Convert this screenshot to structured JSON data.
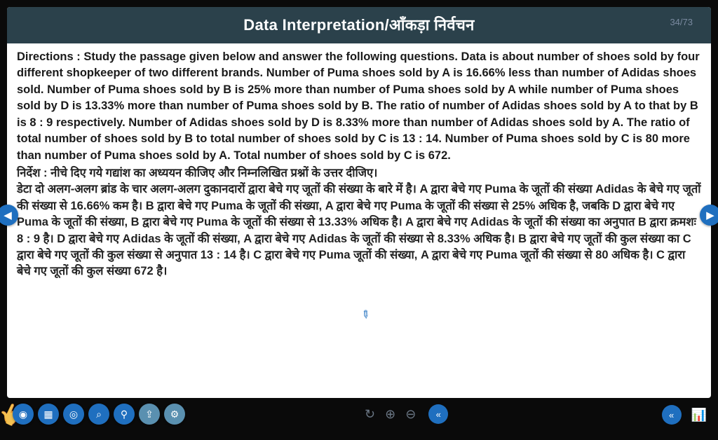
{
  "page_counter": "34/73",
  "title": "Data Interpretation/आँकड़ा निर्वचन",
  "directions_label": "Directions :",
  "english_text": "Study the passage given below and answer the following questions.\nData is about number of shoes sold by four different shopkeeper of two different brands. Number of Puma shoes sold by A is 16.66% less than number of Adidas shoes sold. Number of Puma shoes sold by B is 25% more than number of Puma shoes sold by A while number of Puma shoes sold by D is 13.33% more than number of Puma shoes sold by B. The ratio of number of Adidas shoes sold by A to that by B is 8 : 9 respectively. Number of Adidas shoes sold by D is 8.33% more than number of Adidas shoes sold by A. The ratio of total number of shoes sold by B to total number of shoes sold by C is 13 : 14. Number of Puma shoes sold by C is 80 more than number of Puma shoes sold by A. Total number of shoes sold by C is 672.",
  "hindi_directions_label": "निर्देश :",
  "hindi_directions": "नीचे दिए गये गद्यांश का अध्ययन कीजिए और निम्नलिखित प्रश्नों के उत्तर दीजिए।",
  "hindi_text": "डेटा दो अलग-अलग ब्रांड के चार अलग-अलग दुकानदारों द्वारा बेचे गए जूतों की संख्या के बारे में है। A द्वारा बेचे गए Puma के जूतों की संख्या Adidas के बेचे गए जूतों की संख्या से 16.66% कम है। B द्वारा बेचे गए Puma के जूतों की संख्या, A द्वारा बेचे गए Puma के जूतों की संख्या से 25% अधिक है, जबकि D द्वारा बेचे गए Puma के जूतों की संख्या, B द्वारा बेचे गए Puma के जूतों की संख्या से 13.33% अधिक है। A द्वारा बेचे गए Adidas के जूतों की संख्या का अनुपात B द्वारा क्रमशः 8 : 9 है। D द्वारा बेचे गए Adidas के जूतों की संख्या, A द्वारा बेचे गए Adidas के जूतों की संख्या से 8.33% अधिक है। B द्वारा बेचे गए जूतों की कुल संख्या का C द्वारा बेचे गए जूतों की कुल संख्या से अनुपात 13 : 14 है। C द्वारा बेचे गए Puma जूतों की संख्या, A द्वारा बेचे गए Puma जूतों की संख्या से 80 अधिक है। C द्वारा बेचे गए जूतों की कुल संख्या 672 है।",
  "nav": {
    "prev": "◀",
    "next": "◀"
  },
  "toolbar": {
    "items": [
      {
        "name": "record-button",
        "glyph": "◉"
      },
      {
        "name": "document-button",
        "glyph": "▦"
      },
      {
        "name": "target-button",
        "glyph": "◎"
      },
      {
        "name": "search-button",
        "glyph": "⌕"
      },
      {
        "name": "pin-button",
        "glyph": "⚲"
      },
      {
        "name": "share-button",
        "glyph": "⇪"
      },
      {
        "name": "settings-button",
        "glyph": "⚙"
      }
    ],
    "mid": {
      "refresh": "↻",
      "zoom_in": "⊕",
      "zoom_out": "⊖"
    },
    "collapse": "«"
  },
  "bottom_right": {
    "collapse": "«",
    "chart": "📊"
  },
  "colors": {
    "header_bg": "#2b414b",
    "accent": "#1f6fbf",
    "page_bg": "#ffffff",
    "stage_bg": "#000000",
    "text": "#1a1a1a"
  }
}
